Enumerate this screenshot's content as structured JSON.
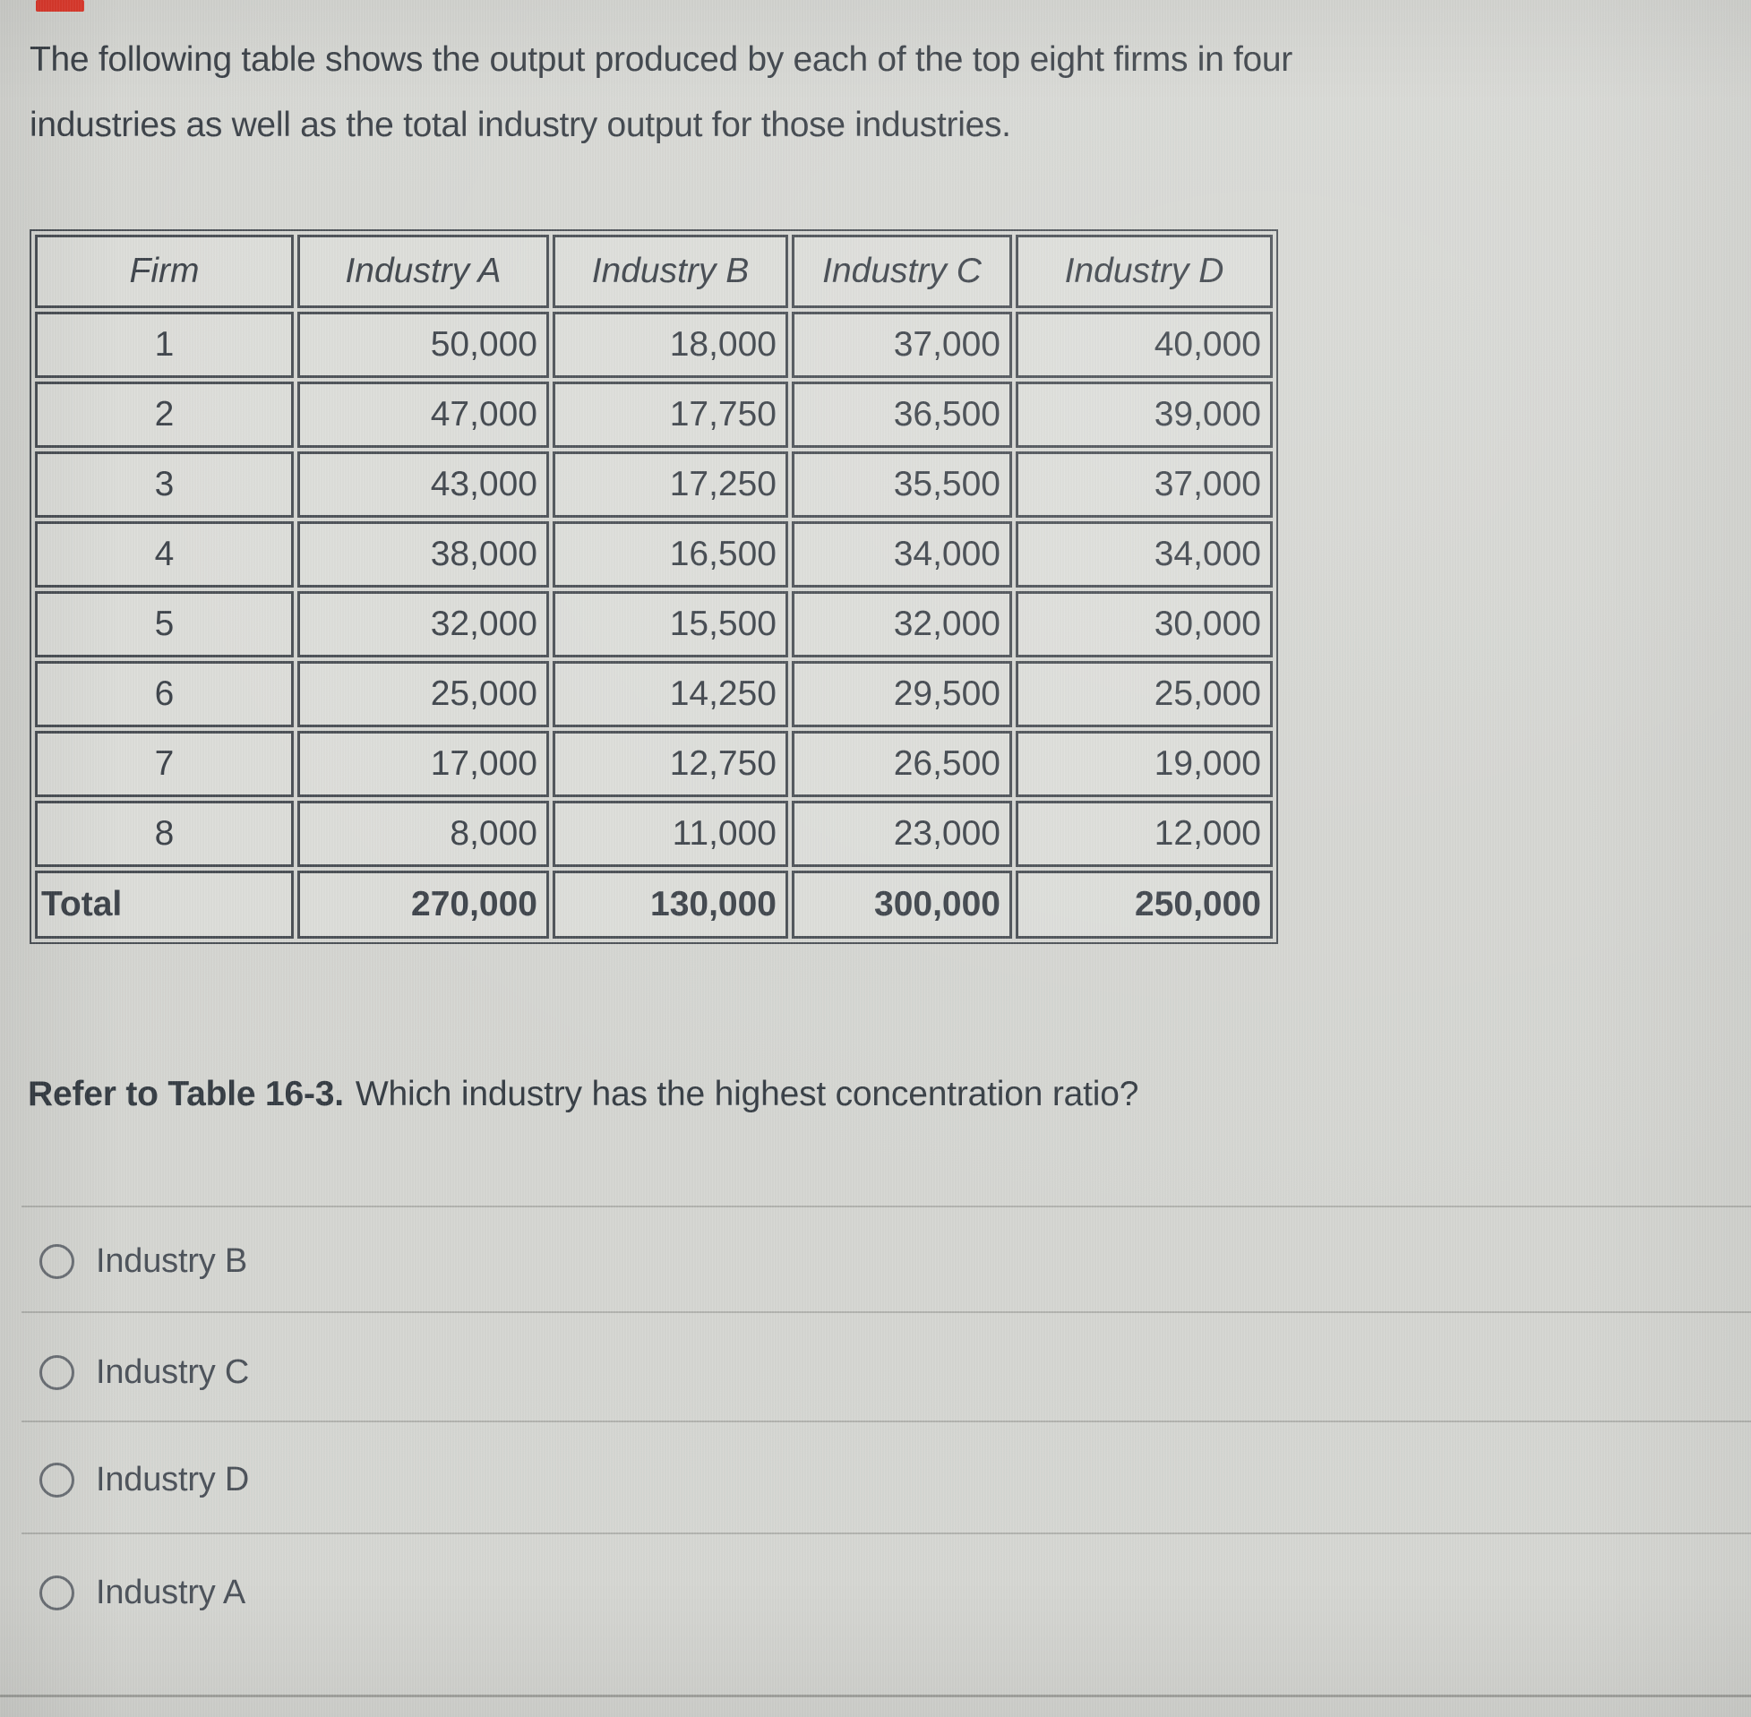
{
  "colors": {
    "page_bg": "#d5d6d2",
    "cell_bg": "#dcddd9",
    "table_border": "#4a4f55",
    "text": "#3b4148",
    "option_text": "#4c525a",
    "divider": "#b2b3af",
    "radio_border": "#6b7076",
    "red_mark": "#e23b2e"
  },
  "intro": "The following table shows the output produced by each of the top eight firms in four industries as well as the total industry output for those industries.",
  "table": {
    "headers": [
      "Firm",
      "Industry A",
      "Industry B",
      "Industry C",
      "Industry D"
    ],
    "rows": [
      [
        "1",
        "50,000",
        "18,000",
        "37,000",
        "40,000"
      ],
      [
        "2",
        "47,000",
        "17,750",
        "36,500",
        "39,000"
      ],
      [
        "3",
        "43,000",
        "17,250",
        "35,500",
        "37,000"
      ],
      [
        "4",
        "38,000",
        "16,500",
        "34,000",
        "34,000"
      ],
      [
        "5",
        "32,000",
        "15,500",
        "32,000",
        "30,000"
      ],
      [
        "6",
        "25,000",
        "14,250",
        "29,500",
        "25,000"
      ],
      [
        "7",
        "17,000",
        "12,750",
        "26,500",
        "19,000"
      ],
      [
        "8",
        "8,000",
        "11,000",
        "23,000",
        "12,000"
      ]
    ],
    "total_row": [
      "Total",
      "270,000",
      "130,000",
      "300,000",
      "250,000"
    ]
  },
  "question": {
    "bold": "Refer to Table 16-3.",
    "rest": "Which industry has the highest concentration ratio?"
  },
  "options": [
    {
      "label": "Industry B",
      "selected": false
    },
    {
      "label": "Industry C",
      "selected": false
    },
    {
      "label": "Industry D",
      "selected": false
    },
    {
      "label": "Industry A",
      "selected": false
    }
  ]
}
